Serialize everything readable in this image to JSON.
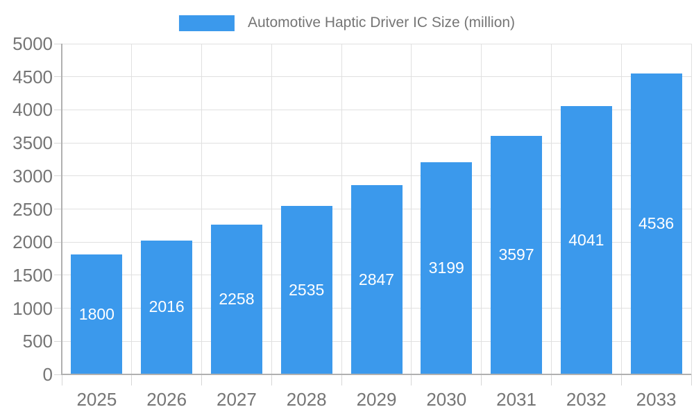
{
  "legend": {
    "label": "Automotive Haptic Driver IC Size (million)",
    "swatch_color": "#3b99ec"
  },
  "chart_data": {
    "type": "bar",
    "title": "Automotive Haptic Driver IC Size (million)",
    "categories": [
      "2025",
      "2026",
      "2027",
      "2028",
      "2029",
      "2030",
      "2031",
      "2032",
      "2033"
    ],
    "values": [
      1800,
      2016,
      2258,
      2535,
      2847,
      3199,
      3597,
      4041,
      4536
    ],
    "xlabel": "",
    "ylabel": "",
    "ylim": [
      0,
      5000
    ],
    "ytick_step": 500,
    "yticks": [
      0,
      500,
      1000,
      1500,
      2000,
      2500,
      3000,
      3500,
      4000,
      4500,
      5000
    ],
    "grid": true,
    "legend_position": "top",
    "bar_labels_inside": true,
    "colors": {
      "bar": "#3b99ec",
      "bar_label": "#ffffff",
      "axis_text": "#757575",
      "legend_text": "#757575",
      "gridline": "#e0e0e0",
      "axis_line": "#b0b0b0",
      "tick_mark": "#d6d6d6",
      "background": "#ffffff"
    }
  }
}
